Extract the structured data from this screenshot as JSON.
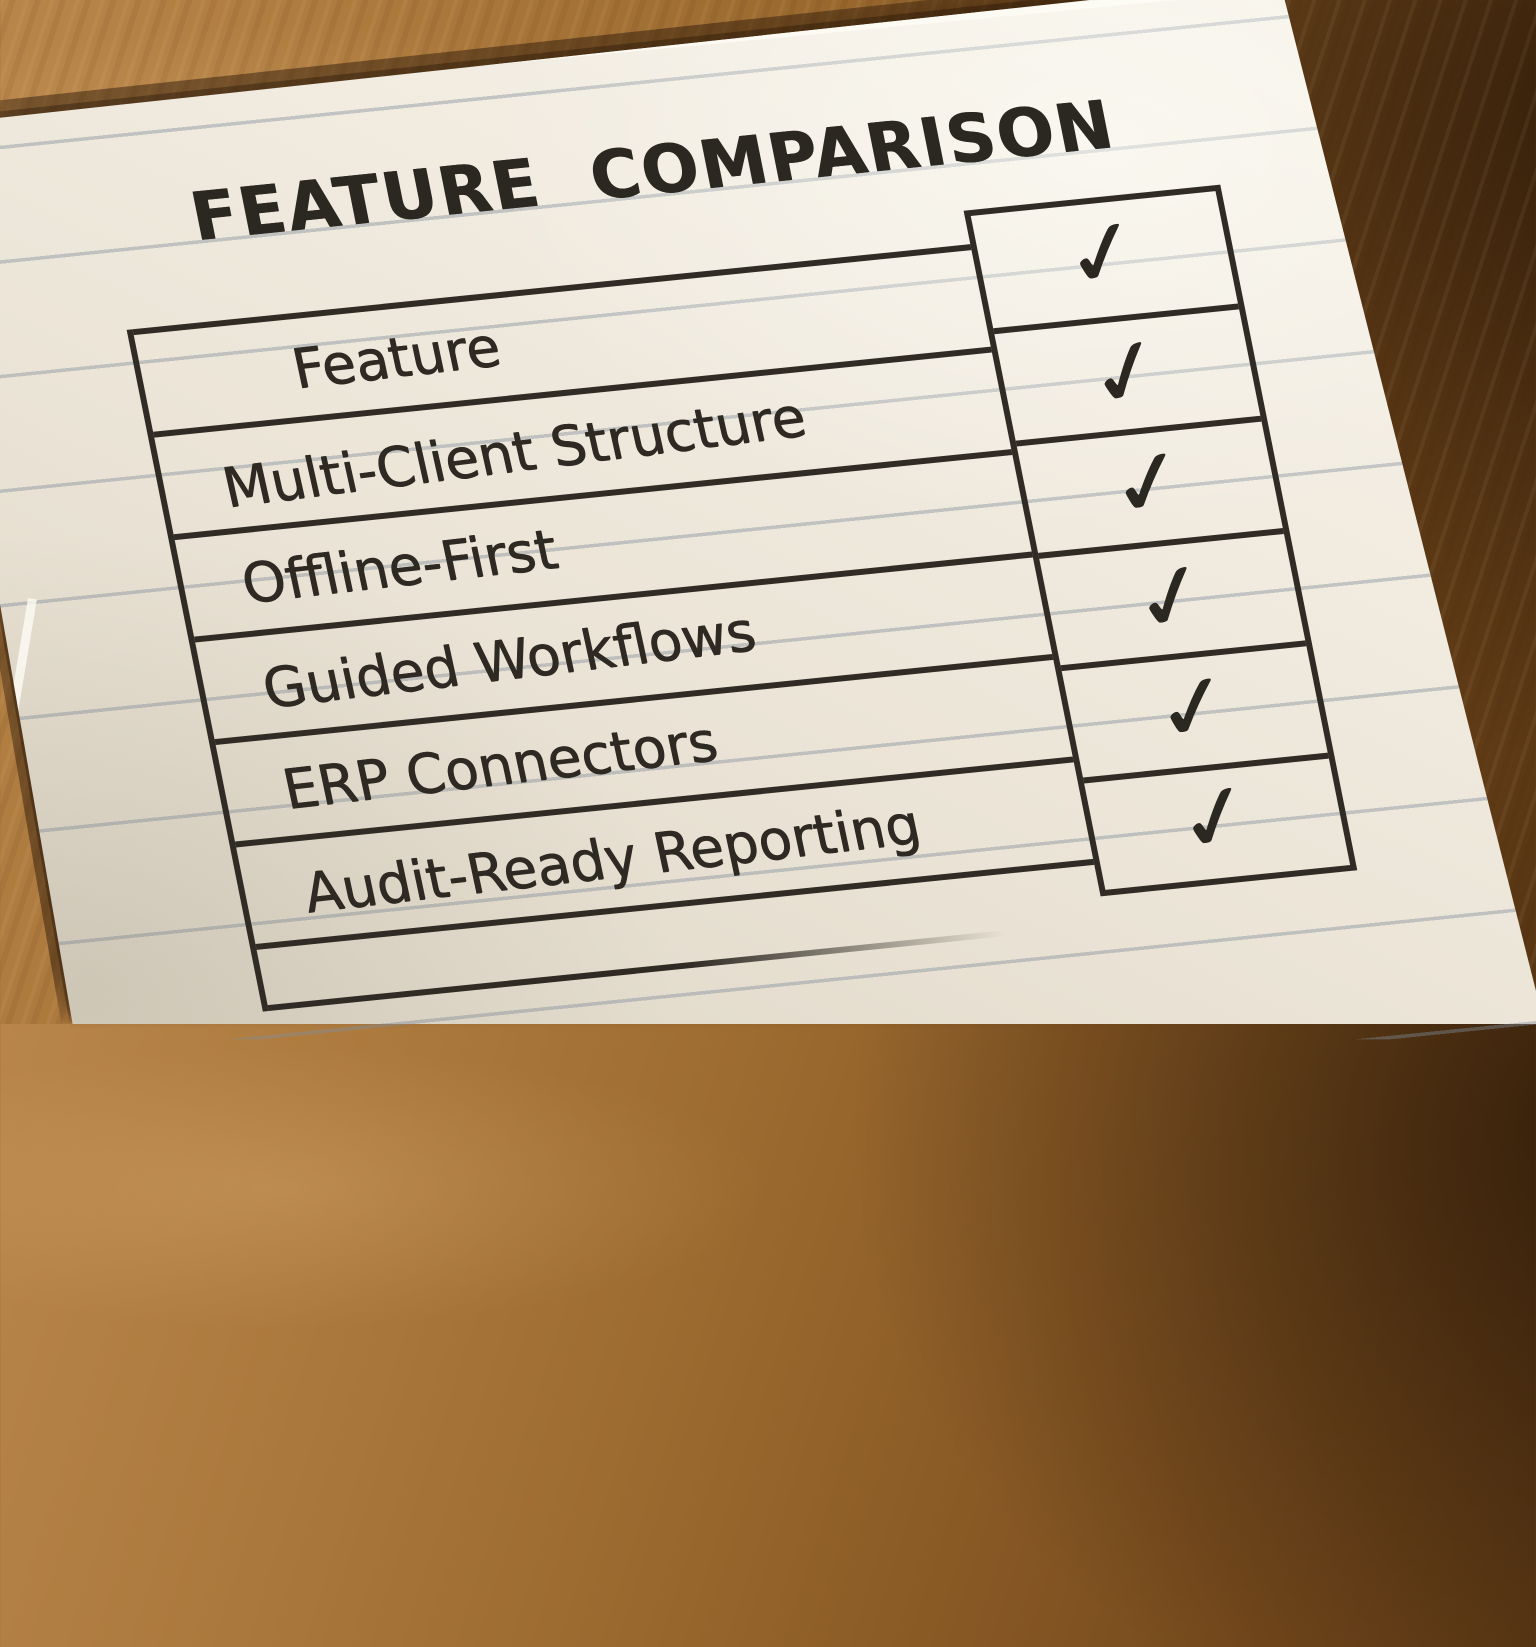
{
  "scene": {
    "description": "Hand-drawn feature comparison table in black marker on a lined notepad sheet lying on a wooden desk"
  },
  "title": "FEATURE COMPARISON",
  "table": {
    "header": {
      "feature_column_label": "Feature",
      "check_column_symbol": "✓"
    },
    "rows": [
      {
        "feature": "Multi-Client Structure",
        "checked": true,
        "check_symbol": "✓"
      },
      {
        "feature": "Offline-First",
        "checked": true,
        "check_symbol": "✓"
      },
      {
        "feature": "Guided Workflows",
        "checked": true,
        "check_symbol": "✓"
      },
      {
        "feature": "ERP Connectors",
        "checked": true,
        "check_symbol": "✓"
      },
      {
        "feature": "Audit-Ready Reporting",
        "checked": true,
        "check_symbol": "✓"
      }
    ]
  },
  "colors": {
    "ink": "#302c25",
    "paper": "#efe9de",
    "rule_line": "#808d9b",
    "wood_light": "#b8854a",
    "wood_dark": "#553413"
  }
}
